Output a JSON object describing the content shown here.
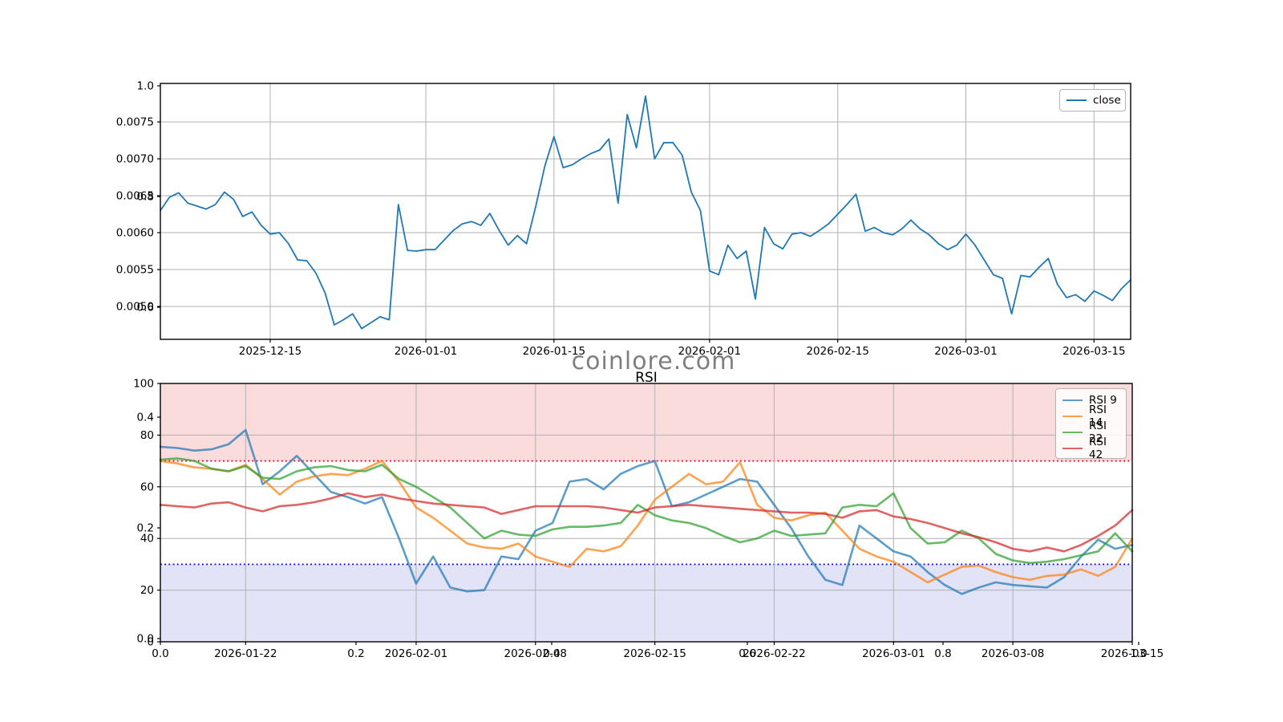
{
  "watermark": {
    "text": "coinlore.com",
    "color": "#7f7f7f"
  },
  "figure_axis": {
    "x_tick_labels": [
      "0.0",
      "0.2",
      "0.4",
      "0.6",
      "0.8",
      "1.0"
    ],
    "y_tick_labels": [
      "1.0",
      "0.8",
      "0.6",
      "0.4",
      "0.2",
      "0.0"
    ]
  },
  "chart_data": [
    {
      "type": "line",
      "title": "",
      "panel": "price",
      "grid": true,
      "legend_position": "upper right",
      "x_start_date": "2025-12-03",
      "x_range_days": [
        0,
        106
      ],
      "x_tick_days": [
        12,
        29,
        43,
        60,
        74,
        88,
        102
      ],
      "x_tick_labels": [
        "2025-12-15",
        "2026-01-01",
        "2026-01-15",
        "2026-02-01",
        "2026-02-15",
        "2026-03-01",
        "2026-03-15"
      ],
      "ylim": [
        0.0045543,
        0.0080217
      ],
      "y_ticks": [
        0.0075,
        0.007,
        0.0065,
        0.006,
        0.0055,
        0.005
      ],
      "y_tick_labels": [
        "0.0075",
        "0.0070",
        "0.0065",
        "0.0060",
        "0.0055",
        "0.0050"
      ],
      "grid_color": "#b0b0b0",
      "series": [
        {
          "name": "close",
          "color": "#1f77b4",
          "opacity": 1,
          "width": 1.8,
          "values": [
            0.0063,
            0.00648,
            0.00654,
            0.0064,
            0.00636,
            0.00632,
            0.00638,
            0.00655,
            0.00645,
            0.00622,
            0.00628,
            0.0061,
            0.00598,
            0.006,
            0.00585,
            0.00563,
            0.00562,
            0.00545,
            0.00518,
            0.00475,
            0.00482,
            0.0049,
            0.0047,
            0.00478,
            0.00486,
            0.00482,
            0.00638,
            0.00576,
            0.00575,
            0.00577,
            0.00577,
            0.0059,
            0.00603,
            0.00612,
            0.00615,
            0.0061,
            0.00626,
            0.00603,
            0.00583,
            0.00596,
            0.00585,
            0.00635,
            0.0069,
            0.0073,
            0.00688,
            0.00692,
            0.007,
            0.00707,
            0.00712,
            0.00727,
            0.0064,
            0.0076,
            0.00715,
            0.00785,
            0.007,
            0.00722,
            0.00722,
            0.00705,
            0.00655,
            0.0063,
            0.00548,
            0.00543,
            0.00583,
            0.00565,
            0.00575,
            0.0051,
            0.00607,
            0.00585,
            0.00578,
            0.00598,
            0.006,
            0.00595,
            0.00603,
            0.00612,
            0.00625,
            0.00638,
            0.00652,
            0.00602,
            0.00607,
            0.006,
            0.00597,
            0.00605,
            0.00617,
            0.00605,
            0.00597,
            0.00585,
            0.00577,
            0.00583,
            0.00598,
            0.00583,
            0.00563,
            0.00543,
            0.00538,
            0.0049,
            0.00542,
            0.0054,
            0.00553,
            0.00565,
            0.0053,
            0.00512,
            0.00516,
            0.00507,
            0.00521,
            0.00515,
            0.00508,
            0.00524,
            0.00536
          ]
        }
      ]
    },
    {
      "type": "line",
      "title": "RSI",
      "panel": "rsi",
      "grid": true,
      "legend_position": "upper right",
      "x_start_date": "2026-01-17",
      "x_range_days": [
        0,
        57
      ],
      "x_tick_days": [
        5,
        15,
        22,
        29,
        36,
        43,
        50,
        57
      ],
      "x_tick_labels": [
        "2026-01-22",
        "2026-02-01",
        "2026-02-08",
        "2026-02-15",
        "2026-02-22",
        "2026-03-01",
        "2026-03-08",
        "2026-03-15"
      ],
      "ylim": [
        0,
        100
      ],
      "y_ticks": [
        100,
        80,
        60,
        40,
        20,
        0
      ],
      "y_tick_labels": [
        "100",
        "80",
        "60",
        "40",
        "20",
        "0"
      ],
      "grid_color": "#b0b0b0",
      "overbought_level": 70,
      "oversold_level": 30,
      "overbought_band_color": "#fbdcdc",
      "oversold_band_color": "#e3e3f8",
      "overbought_line_color": "#ff0000",
      "oversold_line_color": "#0000ff",
      "series": [
        {
          "name": "RSI 9",
          "color": "#1f77b4",
          "opacity": 0.72,
          "width": 2.6,
          "values": [
            75.5,
            75,
            74,
            74.5,
            76.5,
            82,
            61,
            66,
            72,
            65,
            58,
            56,
            53.5,
            56,
            40,
            22.5,
            33,
            21,
            19.5,
            20,
            33,
            32,
            43,
            46,
            62,
            63,
            59,
            65,
            68,
            70,
            52.5,
            54,
            57,
            60,
            63,
            62,
            53,
            44,
            33,
            24,
            22,
            45,
            40,
            35,
            33,
            27,
            22,
            18.5,
            21,
            23,
            22,
            21.5,
            21,
            25,
            33,
            39.5,
            36,
            37.5
          ]
        },
        {
          "name": "RSI 14",
          "color": "#ff7f0e",
          "opacity": 0.72,
          "width": 2.6,
          "values": [
            70,
            69,
            67.5,
            67,
            66,
            68.5,
            63,
            57,
            62,
            64,
            65,
            64.5,
            67,
            70,
            62,
            52,
            48,
            43,
            38,
            36.5,
            36,
            38,
            33,
            31,
            29,
            36,
            35,
            37,
            45,
            55,
            60,
            65,
            61,
            62,
            69.5,
            53,
            48,
            47,
            49,
            50,
            43,
            36,
            33,
            31,
            27,
            23,
            26,
            29,
            29.5,
            27,
            25,
            24,
            25.5,
            26,
            28,
            25.5,
            29,
            40
          ]
        },
        {
          "name": "RSI 22",
          "color": "#2ca02c",
          "opacity": 0.72,
          "width": 2.6,
          "values": [
            70.5,
            71,
            70,
            67,
            66,
            68,
            63.5,
            63,
            66,
            67.5,
            68,
            66.5,
            66,
            68.5,
            63,
            60,
            56,
            52,
            46,
            40,
            43,
            41.5,
            41,
            43.5,
            44.5,
            44.5,
            45,
            46,
            53,
            49,
            47,
            46,
            44,
            41,
            38.5,
            40,
            43,
            41,
            41.5,
            42,
            52,
            53,
            52.5,
            57.5,
            44,
            38,
            38.5,
            43,
            40,
            34,
            31.5,
            30.5,
            31,
            32,
            33.5,
            35,
            42,
            35
          ]
        },
        {
          "name": "RSI 42",
          "color": "#d62728",
          "opacity": 0.72,
          "width": 2.6,
          "values": [
            53,
            52.5,
            52,
            53.5,
            54,
            52,
            50.5,
            52.5,
            53,
            54,
            55.5,
            57.5,
            56,
            57,
            55.5,
            54.5,
            53.5,
            53,
            52.5,
            52,
            49.5,
            51,
            52.5,
            52.5,
            52.5,
            52.5,
            52,
            51,
            50,
            52,
            52.5,
            53,
            52.5,
            52,
            51.5,
            51,
            50.5,
            50,
            50,
            49.5,
            48,
            50.5,
            51,
            48.5,
            47.5,
            46,
            44,
            42,
            40.5,
            38.5,
            36,
            35,
            36.5,
            35,
            37.5,
            41,
            45,
            51
          ]
        }
      ]
    }
  ]
}
